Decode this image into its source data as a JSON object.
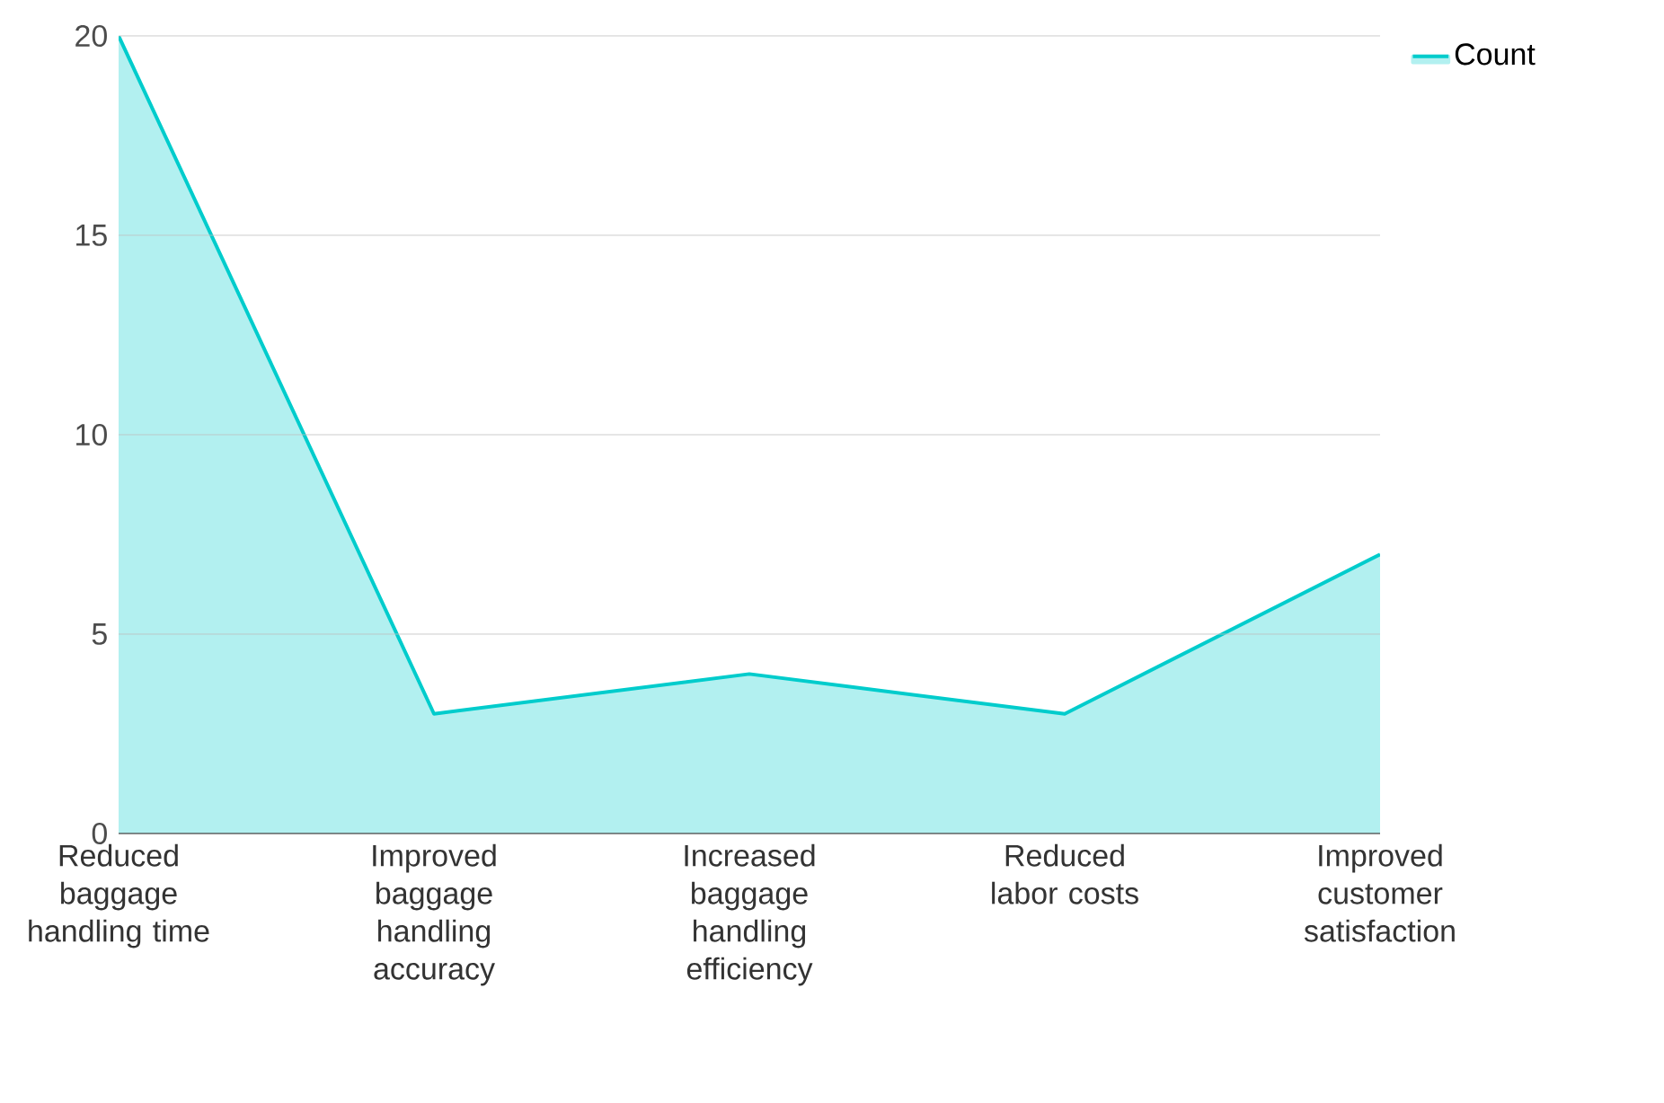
{
  "chart_data": {
    "type": "area",
    "categories": [
      "Reduced baggage handling time",
      "Improved baggage handling accuracy",
      "Increased baggage handling efficiency",
      "Reduced labor costs",
      "Improved customer satisfaction"
    ],
    "series": [
      {
        "name": "Count",
        "color": "#00cccc",
        "values": [
          20,
          3,
          4,
          3,
          7
        ]
      }
    ],
    "ylim": [
      0,
      20
    ],
    "yticks": [
      0,
      5,
      10,
      15,
      20
    ],
    "grid": "y",
    "legend": "top right"
  }
}
